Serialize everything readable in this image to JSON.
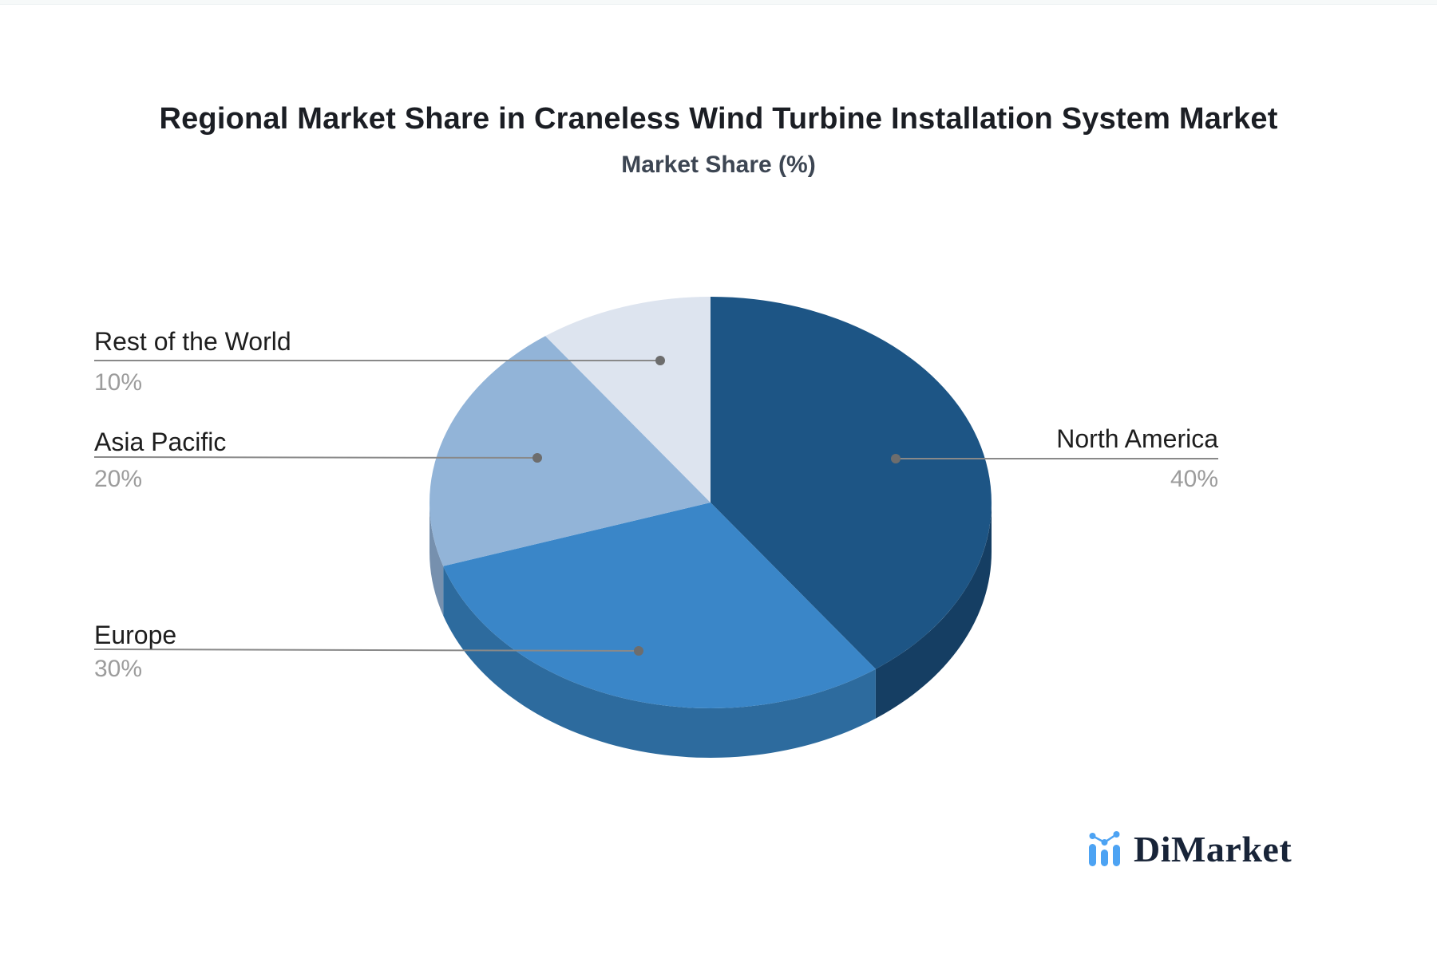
{
  "chart_data": {
    "type": "pie",
    "style": "3d",
    "title": "Regional Market Share in Craneless Wind Turbine Installation System Market",
    "subtitle": "Market Share (%)",
    "start_angle_deg": 0,
    "direction": "clockwise",
    "legend_position": "none",
    "series": [
      {
        "label": "North America",
        "value": 40,
        "display": "40%",
        "color": "#1D5585",
        "side_color": "#153E63"
      },
      {
        "label": "Europe",
        "value": 30,
        "display": "30%",
        "color": "#3A86C8",
        "side_color": "#2D6B9E"
      },
      {
        "label": "Asia Pacific",
        "value": 20,
        "display": "20%",
        "color": "#92B4D8",
        "side_color": "#7690AE"
      },
      {
        "label": "Rest of the World",
        "value": 10,
        "display": "10%",
        "color": "#DDE4EF",
        "side_color": "#C3CEDF"
      }
    ],
    "leader_line_color": "#898989",
    "dot_color": "#6d6d6d"
  },
  "text_colors": {
    "title": "#1b1e24",
    "subtitle": "#3d4653",
    "label_name": "#1e1e1e",
    "label_pct": "#9c9c9c"
  },
  "logo": {
    "text": "DiMarket",
    "icon": "bar-chart-logo-icon",
    "icon_color": "#4DA3F3",
    "text_color": "#182438"
  }
}
